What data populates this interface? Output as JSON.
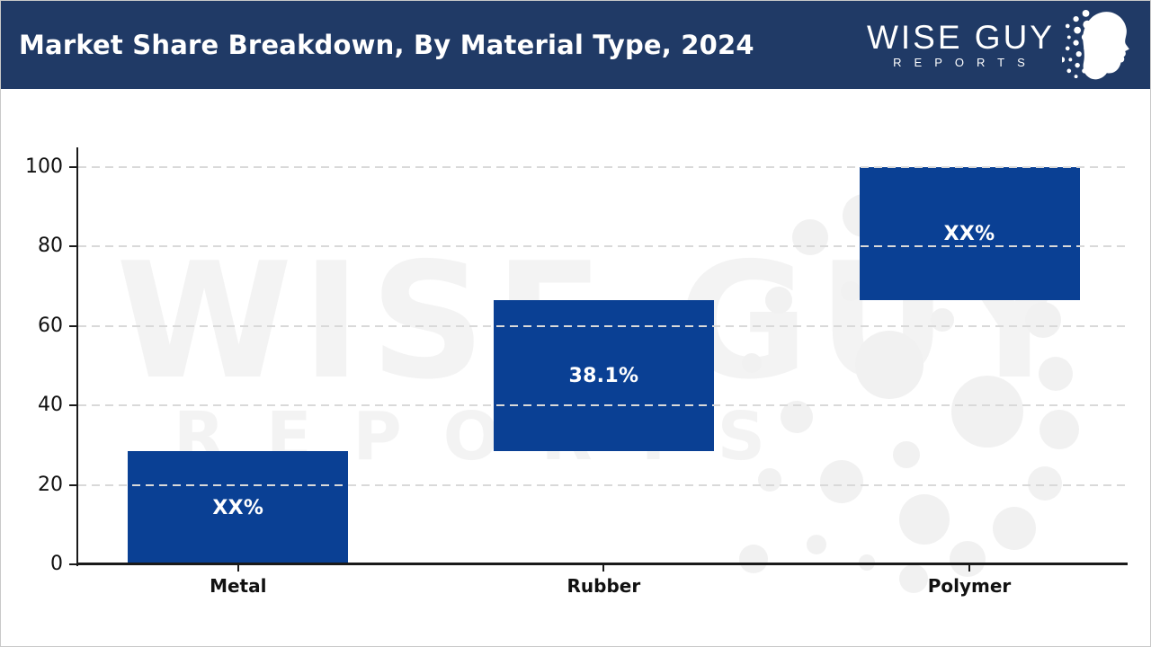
{
  "header": {
    "title": "Market Share Breakdown, By Material Type, 2024",
    "logo": {
      "wordmark": "WISE GUY",
      "subtitle": "REPORTS",
      "icon": "dotted-head-profile-icon"
    }
  },
  "watermark": {
    "line1": "WISE GUY",
    "line2": "REPORTS",
    "graphic": "dotted-head-profile-watermark"
  },
  "colors": {
    "header_navy": "#203a66",
    "bar_blue": "#0a4094",
    "grid_gray": "#d9d9d9",
    "axis_black": "#1a1a1a",
    "watermark_gray": "#f3f3f3",
    "label_white": "#ffffff"
  },
  "chart_data": {
    "type": "bar",
    "subtype": "floating-waterfall",
    "title": "Market Share Breakdown, By Material Type, 2024",
    "categories": [
      "Metal",
      "Rubber",
      "Polymer"
    ],
    "bars": [
      {
        "category": "Metal",
        "from": 0,
        "to": 28.4,
        "label": "XX%"
      },
      {
        "category": "Rubber",
        "from": 28.4,
        "to": 66.5,
        "label": "38.1%"
      },
      {
        "category": "Polymer",
        "from": 66.5,
        "to": 100,
        "label": "XX%"
      }
    ],
    "xlabel": "",
    "ylabel": "",
    "ylim": [
      0,
      100
    ],
    "yticks": [
      0,
      20,
      40,
      60,
      80,
      100
    ],
    "grid": "horizontal-dashed",
    "legend": "none",
    "bar_color": "#0a4094",
    "bar_label_color": "#ffffff"
  }
}
